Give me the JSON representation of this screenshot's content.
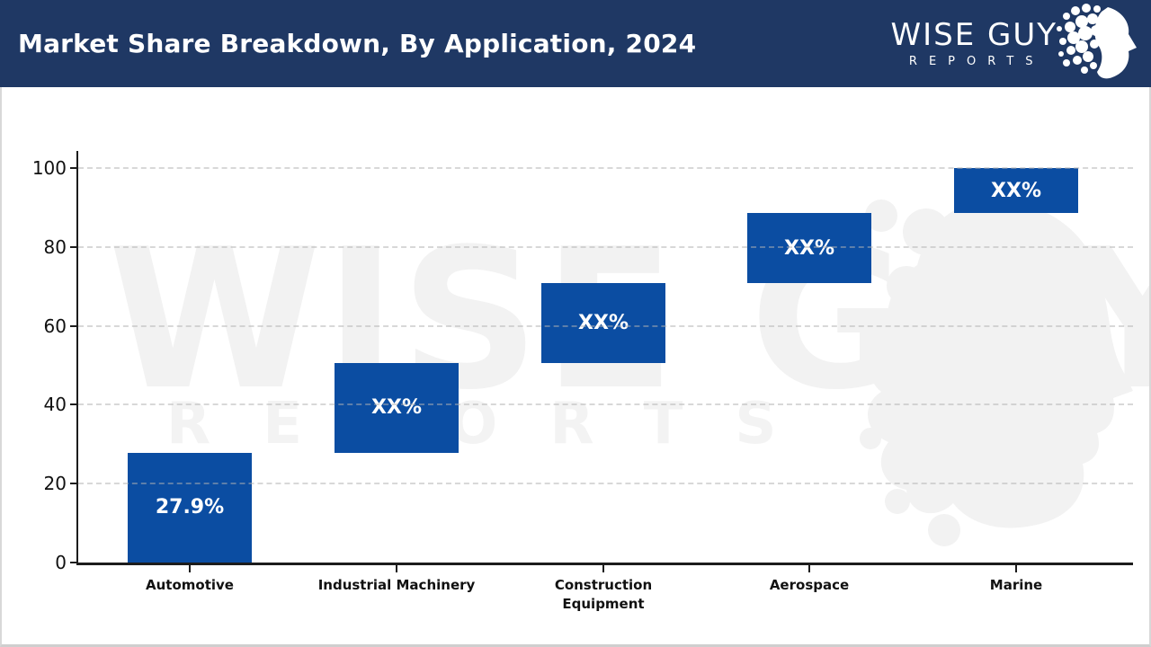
{
  "header": {
    "title": "Market Share Breakdown, By Application, 2024",
    "bg_color": "#1f3864",
    "logo": {
      "line1": "WISE GUY",
      "line2": "REPORTS"
    }
  },
  "watermark": {
    "line1": "WISE GUY",
    "line2": "REPORTS"
  },
  "chart_data": {
    "type": "bar",
    "subtype": "waterfall",
    "title": "Market Share Breakdown, By Application, 2024",
    "xlabel": "",
    "ylabel": "",
    "ylim": [
      0,
      104
    ],
    "y_ticks": [
      0,
      20,
      40,
      60,
      80,
      100
    ],
    "grid": "horizontal dashed",
    "legend": "none",
    "bar_color": "#0b4da2",
    "label_color": "#ffffff",
    "categories": [
      "Automotive",
      "Industrial Machinery",
      "Construction Equipment",
      "Aerospace",
      "Marine"
    ],
    "segments": [
      {
        "category": "Automotive",
        "start": 0,
        "end": 27.9,
        "label": "27.9%"
      },
      {
        "category": "Industrial Machinery",
        "start": 27.9,
        "end": 50.6,
        "label": "XX%"
      },
      {
        "category": "Construction Equipment",
        "start": 50.6,
        "end": 70.8,
        "label": "XX%"
      },
      {
        "category": "Aerospace",
        "start": 70.8,
        "end": 88.5,
        "label": "XX%"
      },
      {
        "category": "Marine",
        "start": 88.5,
        "end": 100,
        "label": "XX%"
      }
    ]
  }
}
